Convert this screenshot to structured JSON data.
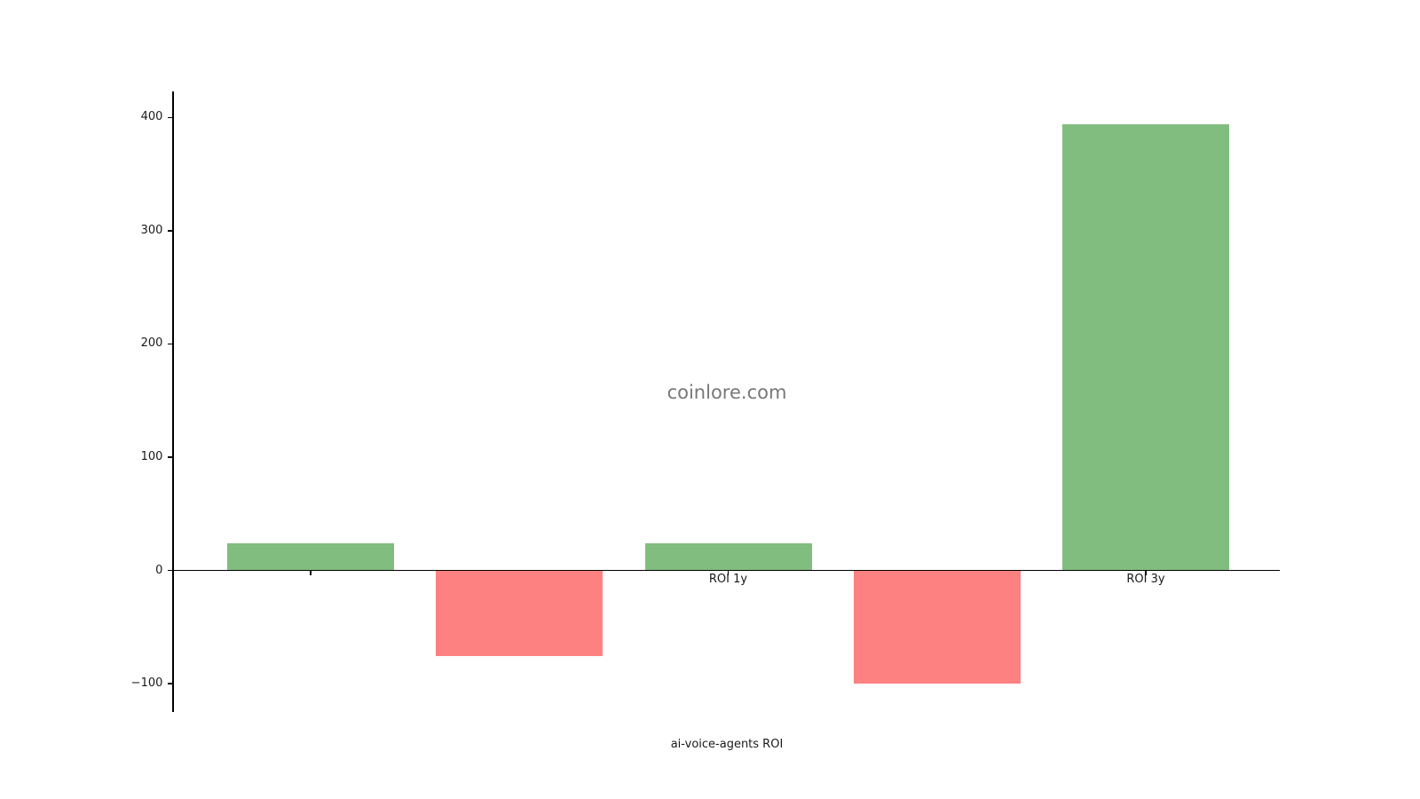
{
  "watermark": {
    "text": "coinlore.com",
    "color": "#787878"
  },
  "chart_data": {
    "type": "bar",
    "title": "",
    "xlabel": "ai-voice-agents ROI",
    "ylabel": "",
    "categories": [
      "",
      "",
      "ROI 1y",
      "",
      "ROI 3y"
    ],
    "values": [
      24,
      -76,
      24,
      -100,
      394
    ],
    "y_ticks": [
      400,
      300,
      200,
      100,
      0,
      -100
    ],
    "ylim": [
      -125,
      423
    ],
    "x_ticks_shown": [
      0,
      2,
      4
    ],
    "grid": false,
    "legend": "none",
    "colors": {
      "positive": "#80bd7e",
      "negative": "#fd8181",
      "axis": "#000000",
      "text": "#1a1a1a"
    }
  }
}
